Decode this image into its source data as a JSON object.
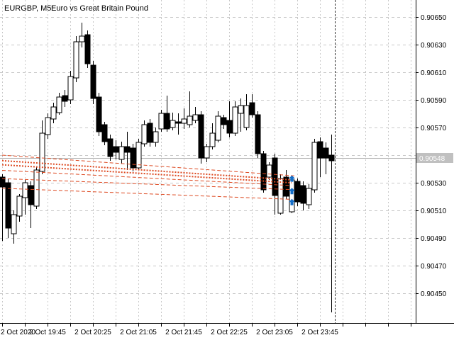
{
  "chart": {
    "title": "EURGBP, M5:",
    "description": "Euro vs Great Britain Pound",
    "current_price": "0.90548"
  },
  "price_axis": {
    "labels": [
      "0.90650",
      "0.90630",
      "0.90610",
      "0.90590",
      "0.90570",
      "0.90550",
      "0.90530",
      "0.90510",
      "0.90490",
      "0.90470",
      "0.90450"
    ],
    "badge": {
      "text": "0.90548"
    }
  },
  "time_axis": {
    "labels": [
      "2 Oct 2020",
      "2 Oct 19:45",
      "2 Oct 20:25",
      "2 Oct 21:05",
      "2 Oct 21:45",
      "2 Oct 22:25",
      "2 Oct 23:05",
      "2 Oct 23:45"
    ],
    "label_every_n_bars": 8
  },
  "chart_data": {
    "type": "candlestick",
    "symbol": "EURGBP",
    "timeframe": "M5",
    "title": "EURGBP, M5:  Euro vs Great Britain Pound",
    "ylim": [
      0.90428,
      0.90662
    ],
    "grid": true,
    "legend_position": "none",
    "bid_price": 0.90548,
    "bars": [
      [
        0.90534,
        0.90536,
        0.90488,
        0.90527
      ],
      [
        0.9053,
        0.90533,
        0.9049,
        0.90497
      ],
      [
        0.90493,
        0.9051,
        0.90486,
        0.90507
      ],
      [
        0.90506,
        0.90522,
        0.90502,
        0.9052
      ],
      [
        0.90519,
        0.90532,
        0.90507,
        0.9053
      ],
      [
        0.90528,
        0.90531,
        0.90497,
        0.90514
      ],
      [
        0.90513,
        0.90542,
        0.90511,
        0.90539
      ],
      [
        0.90538,
        0.90575,
        0.90536,
        0.90566
      ],
      [
        0.90565,
        0.9058,
        0.90562,
        0.90577
      ],
      [
        0.90576,
        0.90588,
        0.90573,
        0.90585
      ],
      [
        0.90581,
        0.90595,
        0.90579,
        0.90592
      ],
      [
        0.90593,
        0.90597,
        0.90585,
        0.90589
      ],
      [
        0.9059,
        0.90611,
        0.90587,
        0.90607
      ],
      [
        0.90606,
        0.90636,
        0.90603,
        0.90632
      ],
      [
        0.90632,
        0.90646,
        0.90628,
        0.90636
      ],
      [
        0.90637,
        0.9064,
        0.90613,
        0.90616
      ],
      [
        0.90615,
        0.90618,
        0.90587,
        0.90591
      ],
      [
        0.90592,
        0.90595,
        0.90564,
        0.90567
      ],
      [
        0.90572,
        0.90574,
        0.90557,
        0.9056
      ],
      [
        0.90562,
        0.90565,
        0.90546,
        0.90549
      ],
      [
        0.90556,
        0.90561,
        0.90547,
        0.90552
      ],
      [
        0.90547,
        0.9056,
        0.90544,
        0.90556
      ],
      [
        0.90556,
        0.90567,
        0.90539,
        0.90552
      ],
      [
        0.90555,
        0.90558,
        0.90538,
        0.90541
      ],
      [
        0.90541,
        0.90562,
        0.90539,
        0.90559
      ],
      [
        0.90558,
        0.90575,
        0.90556,
        0.90572
      ],
      [
        0.90573,
        0.90576,
        0.90556,
        0.90559
      ],
      [
        0.90559,
        0.9057,
        0.90556,
        0.90567
      ],
      [
        0.90569,
        0.90583,
        0.90567,
        0.9058
      ],
      [
        0.9058,
        0.90593,
        0.90567,
        0.90569
      ],
      [
        0.9057,
        0.90581,
        0.90568,
        0.90575
      ],
      [
        0.90574,
        0.9058,
        0.90565,
        0.90573
      ],
      [
        0.90573,
        0.90584,
        0.90569,
        0.90576
      ],
      [
        0.90572,
        0.90596,
        0.9057,
        0.90578
      ],
      [
        0.90575,
        0.90585,
        0.90573,
        0.90579
      ],
      [
        0.90579,
        0.90582,
        0.90544,
        0.90548
      ],
      [
        0.90548,
        0.90558,
        0.90545,
        0.90556
      ],
      [
        0.90556,
        0.90573,
        0.90554,
        0.90566
      ],
      [
        0.90561,
        0.90582,
        0.90559,
        0.90578
      ],
      [
        0.90577,
        0.90579,
        0.90569,
        0.90572
      ],
      [
        0.90575,
        0.90589,
        0.90563,
        0.90566
      ],
      [
        0.90566,
        0.90589,
        0.90564,
        0.90585
      ],
      [
        0.9058,
        0.90591,
        0.90567,
        0.90586
      ],
      [
        0.9057,
        0.90594,
        0.90568,
        0.90586
      ],
      [
        0.90588,
        0.90594,
        0.90577,
        0.90579
      ],
      [
        0.90579,
        0.90582,
        0.90548,
        0.90551
      ],
      [
        0.90551,
        0.90553,
        0.90523,
        0.90525
      ],
      [
        0.90534,
        0.90545,
        0.90532,
        0.90543
      ],
      [
        0.90548,
        0.90551,
        0.90507,
        0.90521
      ],
      [
        0.90508,
        0.90536,
        0.90507,
        0.90533
      ],
      [
        0.90534,
        0.90539,
        0.90518,
        0.9052
      ],
      [
        0.90509,
        0.90534,
        0.90508,
        0.90532
      ],
      [
        0.90531,
        0.90533,
        0.90513,
        0.90516
      ],
      [
        0.90528,
        0.90531,
        0.9051,
        0.90515
      ],
      [
        0.90514,
        0.90529,
        0.90511,
        0.90526
      ],
      [
        0.90525,
        0.90562,
        0.90523,
        0.90559
      ],
      [
        0.9056,
        0.90563,
        0.90534,
        0.90548
      ],
      [
        0.90555,
        0.90559,
        0.90536,
        0.90548
      ],
      [
        0.9055,
        0.90565,
        0.90436,
        0.90546
      ]
    ],
    "objects": {
      "trendlines": [
        {
          "x1_bar": 0,
          "price1": 0.9055,
          "x2_bar": 51.6,
          "price2": 0.90535,
          "width": 1
        },
        {
          "x1_bar": 0,
          "price1": 0.90546,
          "x2_bar": 51.3,
          "price2": 0.90532,
          "width": 2
        },
        {
          "x1_bar": 0,
          "price1": 0.90543,
          "x2_bar": 51.0,
          "price2": 0.9053,
          "width": 2
        },
        {
          "x1_bar": 0,
          "price1": 0.90539,
          "x2_bar": 50.8,
          "price2": 0.90528,
          "width": 1
        },
        {
          "x1_bar": 0,
          "price1": 0.90533,
          "x2_bar": 51.3,
          "price2": 0.90525,
          "width": 1
        },
        {
          "x1_bar": 0,
          "price1": 0.90526,
          "x2_bar": 51.0,
          "price2": 0.90518,
          "width": 1
        }
      ],
      "buy_arrows": [
        {
          "bar": 51,
          "price": 0.90533
        },
        {
          "bar": 51,
          "price": 0.90524
        },
        {
          "bar": 51,
          "price": 0.90516
        }
      ],
      "period_separator_bar": 58.6
    }
  },
  "colors": {
    "background": "#ffffff",
    "grid": "#c8c8c8",
    "bull_body": "#ffffff",
    "bear_body": "#000000",
    "candle_outline": "#000000",
    "bid_line": "#b0b0b0",
    "badge_bg": "#c0c0c0",
    "badge_fg": "#ffffff",
    "trendline": "#dd4a22",
    "buy_arrow": "#146ec8",
    "separator": "#333333",
    "axis_text": "#000000"
  }
}
